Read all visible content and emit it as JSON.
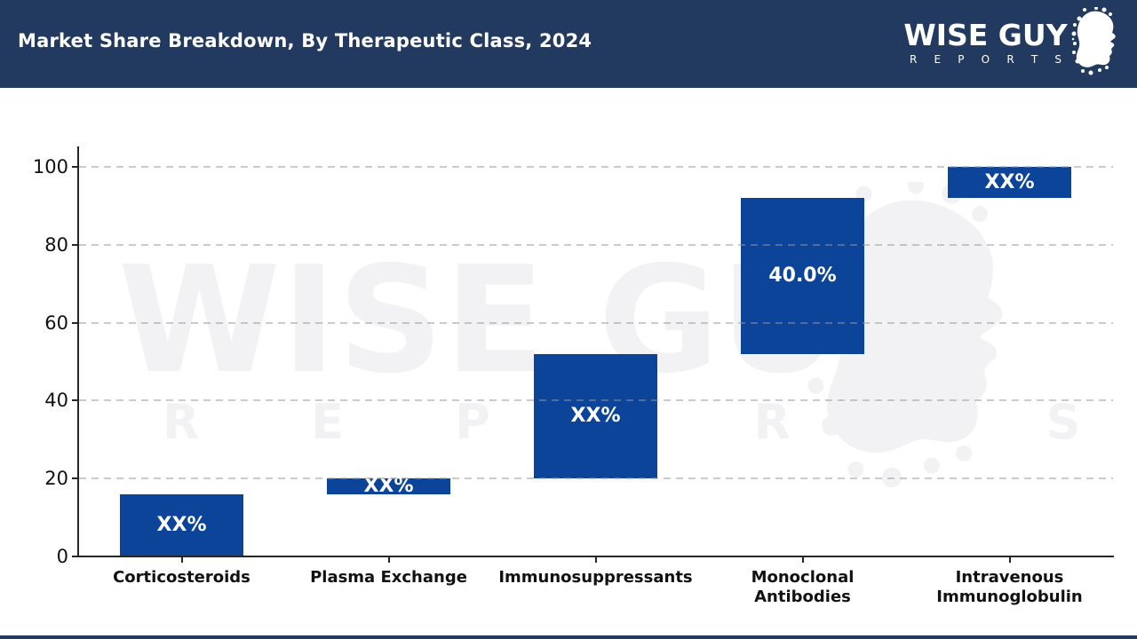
{
  "header": {
    "title": "Market Share Breakdown, By Therapeutic Class, 2024",
    "logo": {
      "wordmark": "WISE GUY",
      "subtext": "REPORTS"
    }
  },
  "watermark": {
    "wordmark": "WISE GUY",
    "subtext": "REPORTS"
  },
  "chart_data": {
    "type": "bar",
    "subtype": "waterfall",
    "title": "Market Share Breakdown, By Therapeutic Class, 2024",
    "categories": [
      "Corticosteroids",
      "Plasma Exchange",
      "Immunosuppressants",
      "Monoclonal Antibodies",
      "Intravenous Immunoglobulin"
    ],
    "category_display": [
      [
        "Corticosteroids"
      ],
      [
        "Plasma Exchange"
      ],
      [
        "Immunosuppressants"
      ],
      [
        "Monoclonal",
        "Antibodies"
      ],
      [
        "Intravenous",
        "Immunoglobulin"
      ]
    ],
    "segments": [
      {
        "category": "Corticosteroids",
        "start": 0,
        "end": 16,
        "value": 16,
        "label": "XX%"
      },
      {
        "category": "Plasma Exchange",
        "start": 16,
        "end": 20,
        "value": 4,
        "label": "XX%"
      },
      {
        "category": "Immunosuppressants",
        "start": 20,
        "end": 52,
        "value": 32,
        "label": "XX%"
      },
      {
        "category": "Monoclonal Antibodies",
        "start": 52,
        "end": 92,
        "value": 40,
        "label": "40.0%"
      },
      {
        "category": "Intravenous Immunoglobulin",
        "start": 92,
        "end": 100,
        "value": 8,
        "label": "XX%"
      }
    ],
    "ylim": [
      0,
      100
    ],
    "yticks": [
      "0",
      "20",
      "40",
      "60",
      "80",
      "100"
    ],
    "xlabel": "",
    "ylabel": "",
    "grid": "horizontal-dashed",
    "legend": "none"
  },
  "colors": {
    "bar": "#0c4499",
    "header_bg": "#223a5f",
    "axis": "#262626",
    "watermark": "#f2f2f4",
    "bar_label_text": "#ffffff",
    "tick_text": "#111111"
  }
}
